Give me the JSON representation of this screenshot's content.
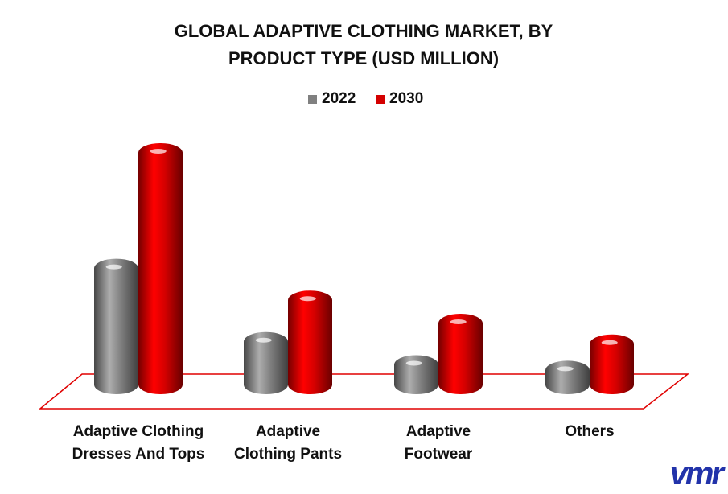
{
  "chart_data": {
    "type": "bar3d",
    "title": "GLOBAL ADAPTIVE CLOTHING MARKET, BY PRODUCT TYPE (USD MILLION)",
    "categories": [
      "Adaptive Clothing Dresses And Tops",
      "Adaptive Clothing Pants",
      "Adaptive Footwear",
      "Others"
    ],
    "series": [
      {
        "name": "2022",
        "color": "#808080",
        "values": [
          170,
          78,
          49,
          42
        ]
      },
      {
        "name": "2030",
        "color": "#d40000",
        "values": [
          315,
          130,
          101,
          75
        ]
      }
    ],
    "logo": "vmr"
  }
}
